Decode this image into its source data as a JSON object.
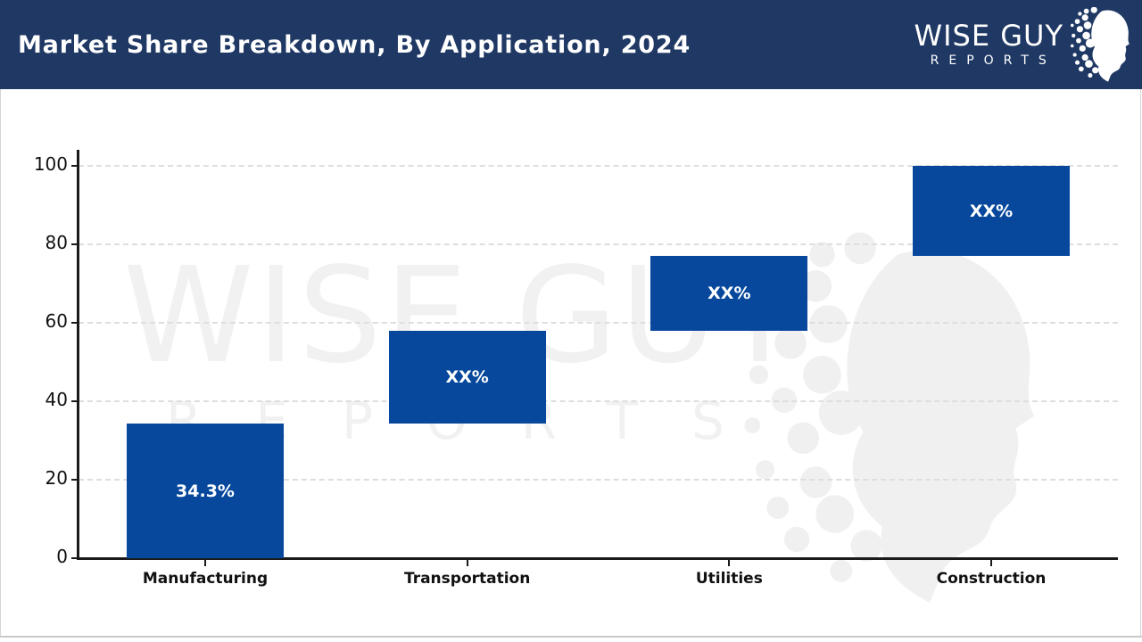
{
  "header": {
    "title": "Market Share Breakdown, By Application, 2024",
    "bg_color": "#1f3864",
    "logo": {
      "line1": "WISE GUY",
      "line2": "REPORTS"
    }
  },
  "watermark": {
    "line1": "WISE GUY",
    "line2": "REPORTS"
  },
  "chart_data": {
    "type": "bar",
    "subtype": "waterfall",
    "title": "Market Share Breakdown, By Application, 2024",
    "categories": [
      "Manufacturing",
      "Transportation",
      "Utilities",
      "Construction"
    ],
    "series": [
      {
        "name": "Market share (%)",
        "segments": [
          {
            "category": "Manufacturing",
            "start": 0,
            "end": 34.3,
            "label": "34.3%"
          },
          {
            "category": "Transportation",
            "start": 34.3,
            "end": 58,
            "label": "XX%"
          },
          {
            "category": "Utilities",
            "start": 58,
            "end": 77,
            "label": "XX%"
          },
          {
            "category": "Construction",
            "start": 77,
            "end": 100,
            "label": "XX%"
          }
        ]
      }
    ],
    "ylim": [
      0,
      100
    ],
    "yticks": [
      0,
      20,
      40,
      60,
      80,
      100
    ],
    "xlabel": "",
    "ylabel": "",
    "grid": "horizontal dashed",
    "legend": "none",
    "bar_color": "#07489c",
    "bar_label_color": "#ffffff",
    "axis_color": "#1a1a1a"
  }
}
